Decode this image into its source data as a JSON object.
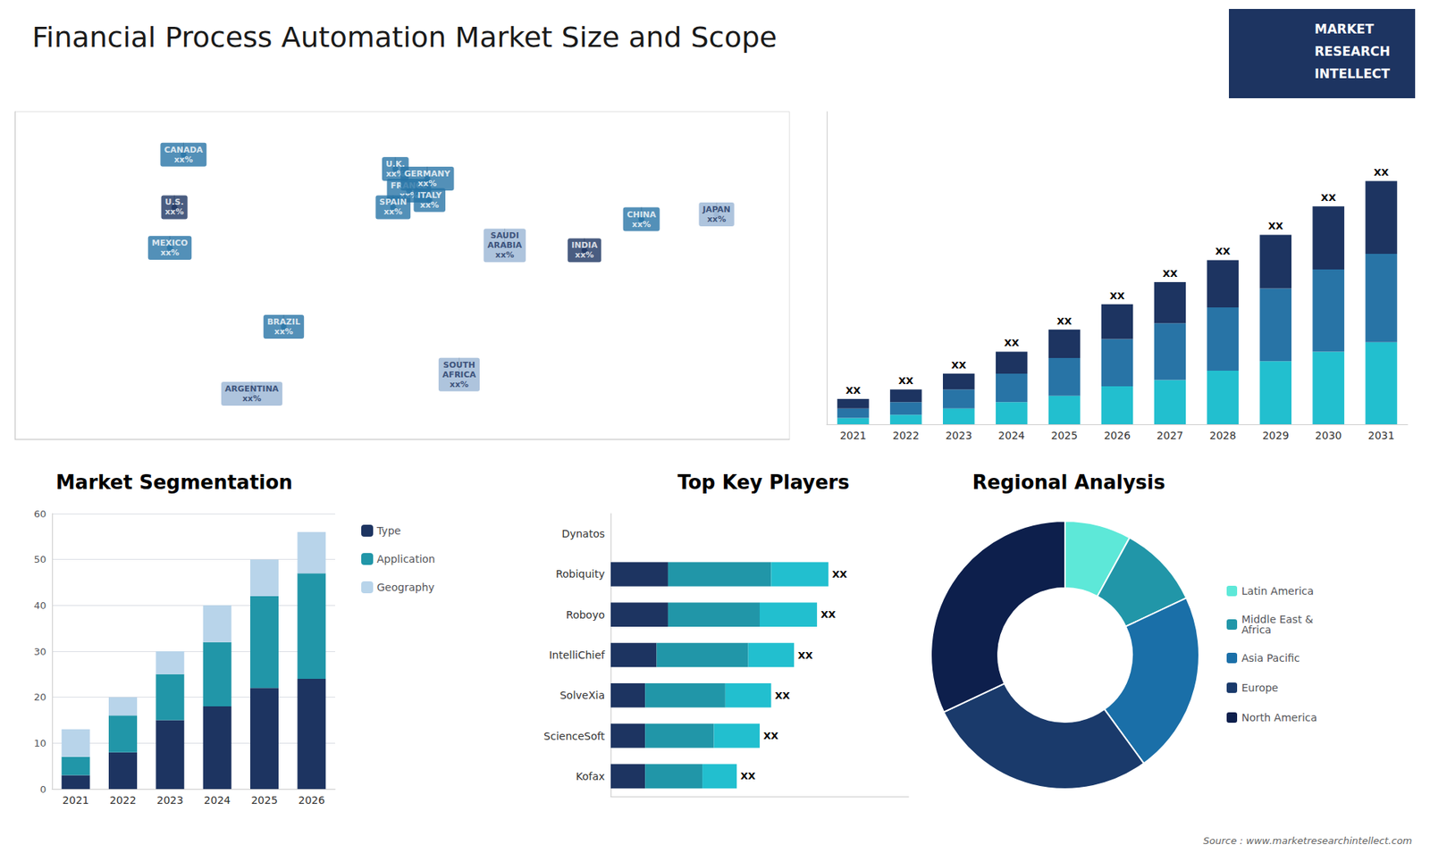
{
  "title": "Financial Process Automation Market Size and Scope",
  "annotations": [
    "MARKET",
    "RESEARCH",
    "INTELLECT",
    "Source : www.marketresearchintellect.com"
  ],
  "chart_data": [
    {
      "type": "scatter",
      "x": [
        -100,
        -96,
        -102,
        -52,
        -66,
        -3,
        3,
        11,
        -4,
        12,
        45,
        25,
        105,
        80,
        138
      ],
      "values": [
        40,
        62,
        23,
        -10,
        -38,
        56,
        47,
        52,
        40,
        43,
        24,
        -30,
        35,
        22,
        37
      ],
      "annotations": [
        "U.S.\nxx%",
        "CANADA\nxx%",
        "MEXICO\nxx%",
        "BRAZIL\nxx%",
        "ARGENTINA\nxx%",
        "U.K.\nxx%",
        "FRANCE\nxx%",
        "GERMANY\nxx%",
        "SPAIN\nxx%",
        "ITALY\nxx%",
        "SAUDI\nARABIA\nxx%",
        "SOUTH\nAFRICA\nxx%",
        "CHINA\nxx%",
        "INDIA\nxx%",
        "JAPAN\nxx%"
      ],
      "colors": [
        "#1d3461",
        "#2874a6",
        "#2874a6",
        "#2874a6",
        "#9ab5d4",
        "#2874a6",
        "#2874a6",
        "#2874a6",
        "#2874a6",
        "#2874a6",
        "#9ab5d4",
        "#9ab5d4",
        "#2874a6",
        "#1d3461",
        "#9ab5d4"
      ],
      "xlim": [
        -170,
        170
      ],
      "ylim": [
        -57,
        80
      ],
      "tick_labels": false,
      "grid": false
    },
    {
      "type": "bar",
      "stacked": true,
      "categories": [
        "2021",
        "2022",
        "2023",
        "2024",
        "2025",
        "2026",
        "2027",
        "2028",
        "2029",
        "2030",
        "2031"
      ],
      "series": [
        {
          "color": "#22bfcf",
          "values": [
            2,
            3,
            5,
            7,
            9,
            12,
            14,
            17,
            20,
            23,
            26
          ]
        },
        {
          "color": "#2874a6",
          "values": [
            3,
            4,
            6,
            9,
            12,
            15,
            18,
            20,
            23,
            26,
            28
          ]
        },
        {
          "color": "#1d3461",
          "values": [
            3,
            4,
            5,
            7,
            9,
            11,
            13,
            15,
            17,
            20,
            23
          ]
        }
      ],
      "annotations": [
        "XX",
        "XX",
        "XX",
        "XX",
        "XX",
        "XX",
        "XX",
        "XX",
        "XX",
        "XX",
        "XX"
      ],
      "ylim": [
        0,
        99
      ],
      "tick_labels": "x",
      "grid": false
    },
    {
      "type": "bar",
      "title": "Market Segmentation",
      "stacked": true,
      "categories": [
        "2021",
        "2022",
        "2023",
        "2024",
        "2025",
        "2026"
      ],
      "series": [
        {
          "name": "Type",
          "color": "#1d3461",
          "values": [
            3,
            8,
            15,
            18,
            22,
            24
          ]
        },
        {
          "name": "Application",
          "color": "#2196a8",
          "values": [
            4,
            8,
            10,
            14,
            20,
            23
          ]
        },
        {
          "name": "Geography",
          "color": "#b8d4ea",
          "values": [
            6,
            4,
            5,
            8,
            8,
            9
          ]
        }
      ],
      "ylim": [
        0,
        60
      ],
      "yticks": [
        0,
        10,
        20,
        30,
        40,
        50,
        60
      ],
      "grid": true,
      "legend": "right"
    },
    {
      "type": "bar",
      "title": "Top Key Players",
      "orientation": "horizontal",
      "stacked": true,
      "categories": [
        "Dynatos",
        "Robiquity",
        "Roboyo",
        "IntelliChief",
        "SolveXia",
        "ScienceSoft",
        "Kofax"
      ],
      "series": [
        {
          "color": "#1d3461",
          "values": [
            0,
            5,
            5,
            4,
            3,
            3,
            3
          ]
        },
        {
          "color": "#2196a8",
          "values": [
            0,
            9,
            8,
            8,
            7,
            6,
            5
          ]
        },
        {
          "color": "#22bfcf",
          "values": [
            0,
            5,
            5,
            4,
            4,
            4,
            3
          ]
        }
      ],
      "annotations": [
        null,
        "XX",
        "XX",
        "XX",
        "XX",
        "XX",
        "XX"
      ],
      "xlim": [
        0,
        26
      ],
      "tick_labels": "y",
      "grid": false
    },
    {
      "type": "pie",
      "title": "Regional Analysis",
      "categories": [
        "Latin America",
        "Middle East &\nAfrica",
        "Asia Pacific",
        "Europe",
        "North America"
      ],
      "values": [
        8,
        10,
        22,
        28,
        32
      ],
      "colors": [
        "#5de8d8",
        "#2196a8",
        "#1a6fa8",
        "#1a3a6b",
        "#0d1f4c"
      ],
      "legend": "right"
    }
  ]
}
